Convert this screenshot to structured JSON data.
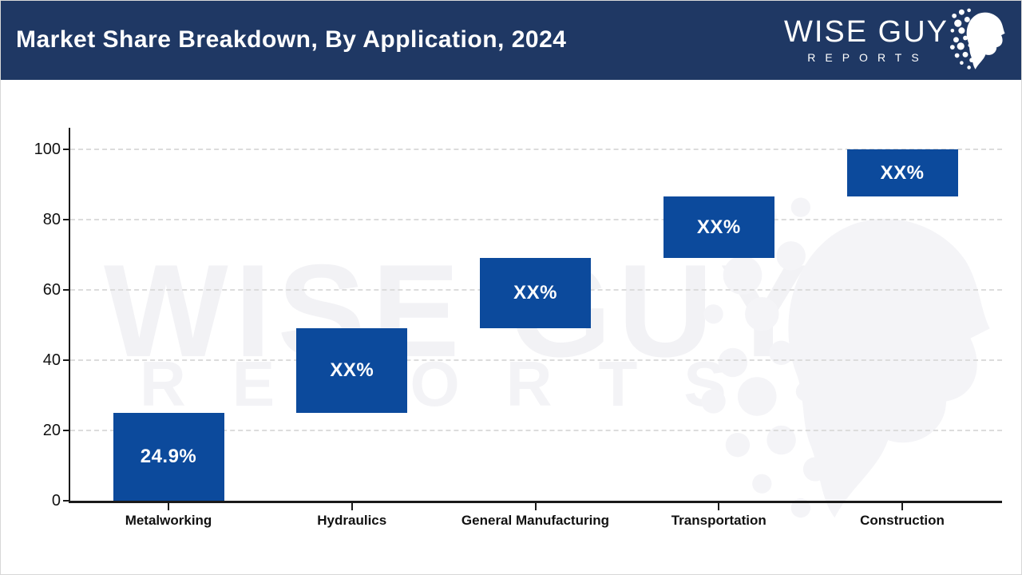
{
  "header": {
    "title": "Market Share Breakdown, By Application, 2024",
    "logo": {
      "wordmark": "WISE GUY",
      "subtext": "REPORTS"
    }
  },
  "watermark": {
    "wordmark": "WISE GUY",
    "subtext": "REPORTS"
  },
  "colors": {
    "header_bg": "#1f3864",
    "bar_fill": "#0c4a9c",
    "bar_label": "#ffffff",
    "gridline": "#dcdcdc",
    "axis": "#1a1a1a"
  },
  "chart_data": {
    "type": "bar",
    "variant": "floating-segment-waterfall",
    "title": "Market Share Breakdown, By Application, 2024",
    "categories": [
      "Metalworking",
      "Hydraulics",
      "General Manufacturing",
      "Transportation",
      "Construction"
    ],
    "segments": [
      {
        "category": "Metalworking",
        "from": 0,
        "to": 24.9,
        "label": "24.9%"
      },
      {
        "category": "Hydraulics",
        "from": 24.9,
        "to": 49,
        "label": "XX%"
      },
      {
        "category": "General Manufacturing",
        "from": 49,
        "to": 69,
        "label": "XX%"
      },
      {
        "category": "Transportation",
        "from": 69,
        "to": 86.5,
        "label": "XX%"
      },
      {
        "category": "Construction",
        "from": 86.5,
        "to": 100,
        "label": "XX%"
      }
    ],
    "xlabel": "",
    "ylabel": "",
    "ylim": [
      0,
      100
    ],
    "yticks": [
      0,
      20,
      40,
      60,
      80,
      100
    ],
    "grid": "horizontal-dashed",
    "legend": "none"
  }
}
